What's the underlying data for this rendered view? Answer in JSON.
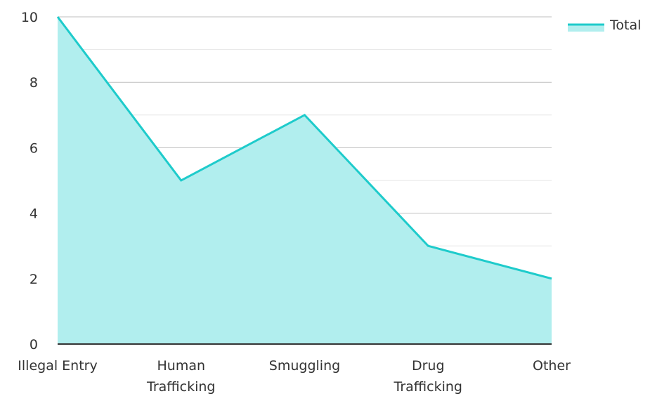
{
  "chart_data": {
    "type": "area",
    "categories": [
      "Illegal Entry",
      "Human Trafficking",
      "Smuggling",
      "Drug Trafficking",
      "Other"
    ],
    "category_lines": [
      [
        "Illegal Entry"
      ],
      [
        "Human",
        "Trafficking"
      ],
      [
        "Smuggling"
      ],
      [
        "Drug",
        "Trafficking"
      ],
      [
        "Other"
      ]
    ],
    "series": [
      {
        "name": "Total",
        "values": [
          10,
          5,
          7,
          3,
          2
        ]
      }
    ],
    "ylim": [
      0,
      10
    ],
    "yticks": [
      "0",
      "2",
      "4",
      "6",
      "8",
      "10"
    ],
    "grid": true,
    "legend_position": "top-right",
    "colors": {
      "line": "#1ECBCB",
      "fill": "#B1EEEE",
      "grid_major": "#BFBFBF",
      "grid_minor": "#E6E6E6",
      "axis": "#333333"
    }
  }
}
